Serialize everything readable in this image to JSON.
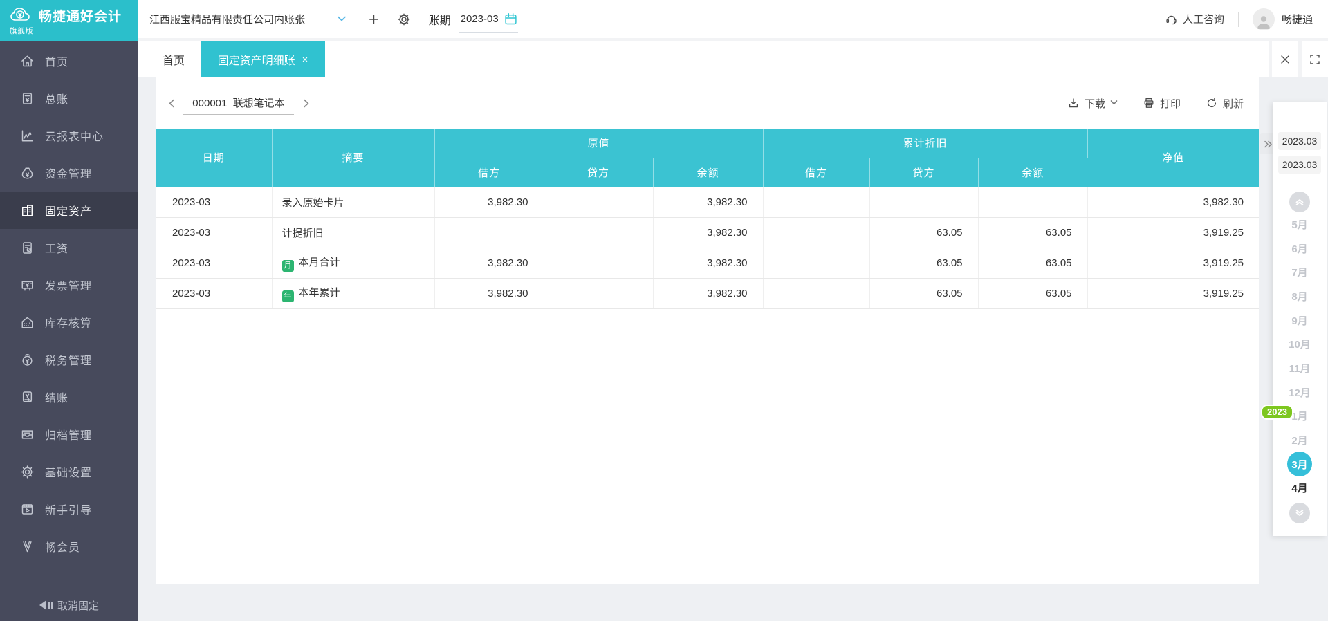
{
  "colors": {
    "brand_teal": "#2bbfcb",
    "active_tab_teal": "#30c2d0",
    "table_header_teal": "#3bc3d2",
    "sidebar_bg": "#474a5c",
    "sidebar_active_bg": "#3a3d4c",
    "selected_month_teal": "#35bfd9",
    "year_badge_green": "#7dc71f",
    "summary_icon_green": "#2cb571"
  },
  "brand": {
    "app_name": "畅捷通好会计",
    "edition": "旗舰版"
  },
  "topbar": {
    "company": "江西服宝精品有限责任公司内账张",
    "period_label": "账期",
    "period_value": "2023-03",
    "consult_label": "人工咨询",
    "username": "畅捷通"
  },
  "tabs": [
    {
      "label": "首页",
      "active": false,
      "closable": false
    },
    {
      "label": "固定资产明细账",
      "active": true,
      "closable": true
    }
  ],
  "tab_close_glyph": "×",
  "sidebar": {
    "items": [
      {
        "label": "首页",
        "icon": "home-icon",
        "active": false
      },
      {
        "label": "总账",
        "icon": "ledger-icon",
        "active": false
      },
      {
        "label": "云报表中心",
        "icon": "cloud-report-icon",
        "active": false
      },
      {
        "label": "资金管理",
        "icon": "funds-icon",
        "active": false
      },
      {
        "label": "固定资产",
        "icon": "fixed-assets-icon",
        "active": true
      },
      {
        "label": "工资",
        "icon": "payroll-icon",
        "active": false
      },
      {
        "label": "发票管理",
        "icon": "invoice-icon",
        "active": false
      },
      {
        "label": "库存核算",
        "icon": "inventory-icon",
        "active": false
      },
      {
        "label": "税务管理",
        "icon": "tax-icon",
        "active": false
      },
      {
        "label": "结账",
        "icon": "closing-icon",
        "active": false
      },
      {
        "label": "归档管理",
        "icon": "archive-icon",
        "active": false
      },
      {
        "label": "基础设置",
        "icon": "settings-icon",
        "active": false
      },
      {
        "label": "新手引导",
        "icon": "guide-icon",
        "active": false
      },
      {
        "label": "畅会员",
        "icon": "member-icon",
        "active": false
      }
    ],
    "unpin_label": "取消固定"
  },
  "toolbar": {
    "asset_value": "000001  联想笔记本",
    "download_label": "下载",
    "print_label": "打印",
    "refresh_label": "刷新"
  },
  "table": {
    "columns": {
      "date": "日期",
      "summary": "摘要",
      "original_group": "原值",
      "depreciation_group": "累计折旧",
      "debit": "借方",
      "credit": "贷方",
      "balance": "余额",
      "net": "净值"
    },
    "rows": [
      {
        "date": "2023-03",
        "summary": "录入原始卡片",
        "summary_icon": "",
        "ov_debit": "3,982.30",
        "ov_credit": "",
        "ov_balance": "3,982.30",
        "dep_debit": "",
        "dep_credit": "",
        "dep_balance": "",
        "net": "3,982.30"
      },
      {
        "date": "2023-03",
        "summary": "计提折旧",
        "summary_icon": "",
        "ov_debit": "",
        "ov_credit": "",
        "ov_balance": "3,982.30",
        "dep_debit": "",
        "dep_credit": "63.05",
        "dep_balance": "63.05",
        "net": "3,919.25"
      },
      {
        "date": "2023-03",
        "summary": "本月合计",
        "summary_icon": "月",
        "ov_debit": "3,982.30",
        "ov_credit": "",
        "ov_balance": "3,982.30",
        "dep_debit": "",
        "dep_credit": "63.05",
        "dep_balance": "63.05",
        "net": "3,919.25"
      },
      {
        "date": "2023-03",
        "summary": "本年累计",
        "summary_icon": "年",
        "ov_debit": "3,982.30",
        "ov_credit": "",
        "ov_balance": "3,982.30",
        "dep_debit": "",
        "dep_credit": "63.05",
        "dep_balance": "63.05",
        "net": "3,919.25"
      }
    ]
  },
  "right_panel": {
    "period_boxes": [
      "2023.03",
      "2023.03"
    ],
    "year_badge": "2023",
    "months": [
      {
        "label": "5月",
        "state": "muted"
      },
      {
        "label": "6月",
        "state": "muted"
      },
      {
        "label": "7月",
        "state": "muted"
      },
      {
        "label": "8月",
        "state": "muted"
      },
      {
        "label": "9月",
        "state": "muted"
      },
      {
        "label": "10月",
        "state": "muted"
      },
      {
        "label": "11月",
        "state": "muted"
      },
      {
        "label": "12月",
        "state": "muted"
      },
      {
        "label": "1月",
        "state": "muted"
      },
      {
        "label": "2月",
        "state": "muted"
      },
      {
        "label": "3月",
        "state": "selected"
      },
      {
        "label": "4月",
        "state": "current"
      }
    ]
  }
}
